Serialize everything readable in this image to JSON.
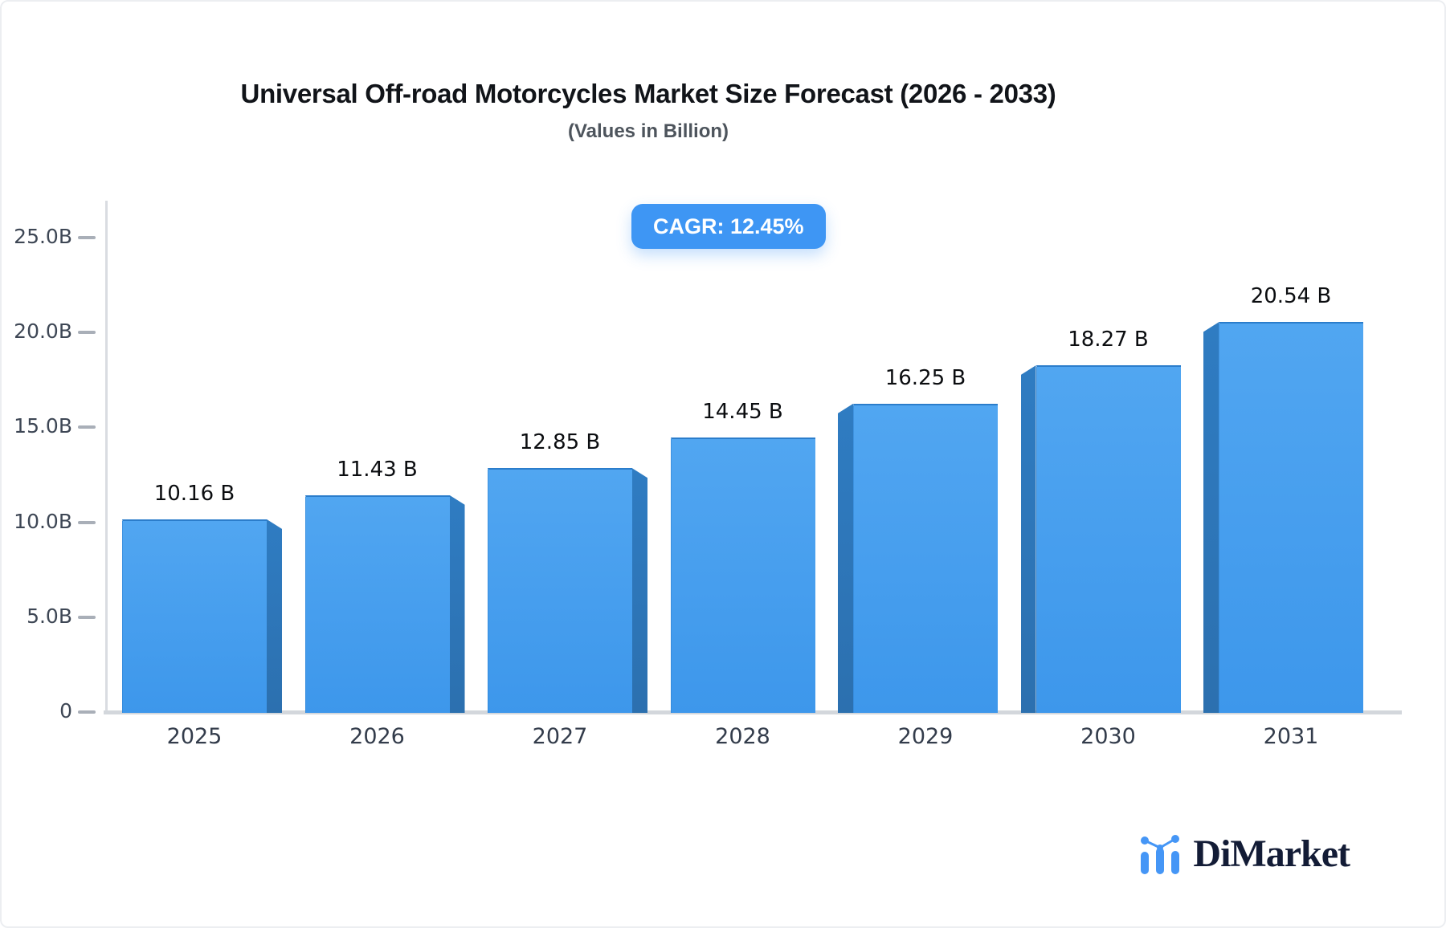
{
  "title": "Universal Off-road Motorcycles Market Size Forecast (2026 - 2033)",
  "subtitle": "(Values in Billion)",
  "badge": {
    "label": "CAGR: 12.45%"
  },
  "brand": {
    "name": "DiMarket"
  },
  "colors": {
    "bar_face_top": "#51A6F1",
    "bar_face_bottom": "#3D97EB",
    "bar_side": "#2E75B7",
    "badge_bg": "#3E96F4",
    "axis_line": "#D7DADE",
    "tick": "#A9AFB8",
    "y_label": "#3E4755",
    "x_label": "#333C4B",
    "value_label": "#0B0D10",
    "brand_blue": "#4596F6",
    "brand_navy": "#131C36"
  },
  "chart_data": {
    "type": "bar",
    "title": "Universal Off-road Motorcycles Market Size Forecast (2026 - 2033)",
    "subtitle": "(Values in Billion)",
    "categories": [
      "2025",
      "2026",
      "2027",
      "2028",
      "2029",
      "2030",
      "2031"
    ],
    "values": [
      10.16,
      11.43,
      12.85,
      14.45,
      16.25,
      18.27,
      20.54
    ],
    "data_labels": [
      "10.16 B",
      "11.43 B",
      "12.85 B",
      "14.45 B",
      "16.25 B",
      "18.27 B",
      "20.54 B"
    ],
    "y_ticks": [
      {
        "label": "25.0B",
        "value": 25
      },
      {
        "label": "20.0B",
        "value": 20
      },
      {
        "label": "15.0B",
        "value": 15
      },
      {
        "label": "10.0B",
        "value": 10
      },
      {
        "label": "5.0B",
        "value": 5
      },
      {
        "label": "0",
        "value": 0
      }
    ],
    "ylim": [
      0,
      25
    ],
    "grid": false,
    "legend": false,
    "annotation": "CAGR: 12.45%"
  }
}
